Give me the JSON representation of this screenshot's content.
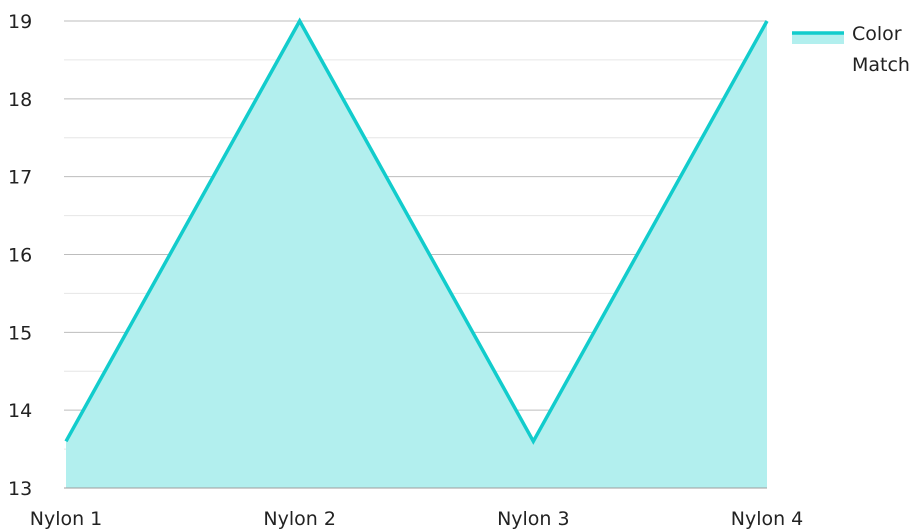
{
  "chart_data": {
    "type": "area",
    "categories": [
      "Nylon 1",
      "Nylon 2",
      "Nylon 3",
      "Nylon 4"
    ],
    "series": [
      {
        "name": "Color Match",
        "values": [
          13.6,
          19,
          13.6,
          19
        ],
        "color": "#12CCCC",
        "fill_color": "#B2EFEE"
      }
    ],
    "ylim": [
      13,
      19
    ],
    "yticks": [
      13,
      14,
      15,
      16,
      17,
      18,
      19
    ],
    "legend": {
      "position": "top-right",
      "label_lines": [
        "Color",
        "Match"
      ]
    },
    "grid": true,
    "gridline_major_color": "#BDBDBD",
    "gridline_minor_color": "#E6E6E6",
    "axis_color": "#9E9E9E"
  }
}
